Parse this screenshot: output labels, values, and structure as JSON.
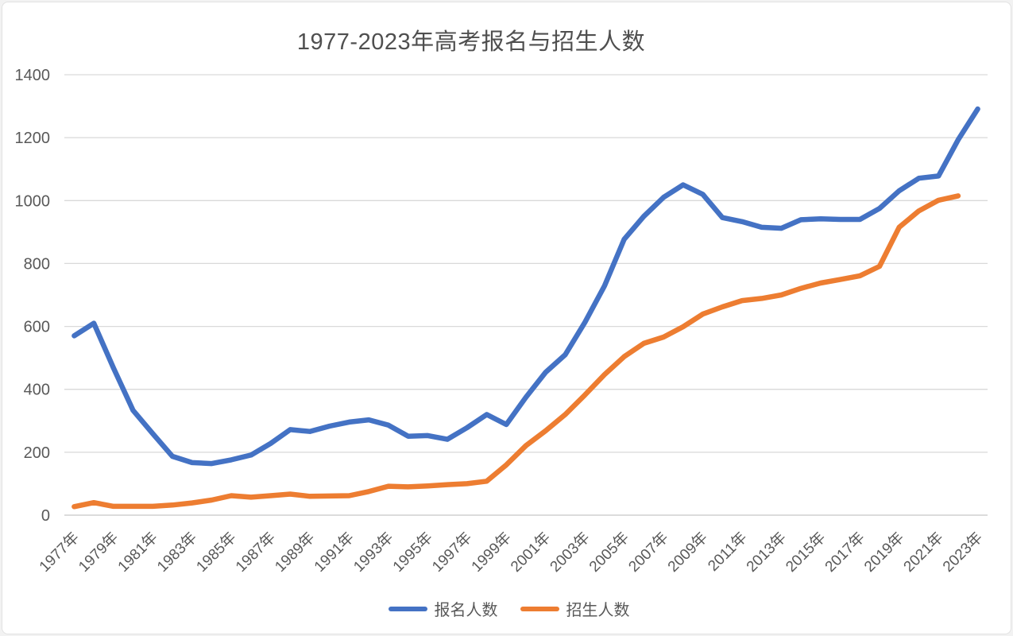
{
  "title": "1977-2023年高考报名与招生人数",
  "colors": {
    "series_registration": "#4472C4",
    "series_enrollment": "#ED7D31",
    "grid": "#D9D9D9",
    "axis_line": "#C6C6C6",
    "text": "#595959",
    "title_text": "#4F4F4F",
    "card_bg": "#FFFFFF"
  },
  "legend": {
    "items": [
      {
        "label": "报名人数",
        "color": "#4472C4"
      },
      {
        "label": "招生人数",
        "color": "#ED7D31"
      }
    ]
  },
  "chart_data": {
    "type": "line",
    "title": "1977-2023年高考报名与招生人数",
    "xlabel": "",
    "ylabel": "",
    "ylim": [
      0,
      1400
    ],
    "y_ticks": [
      0,
      200,
      400,
      600,
      800,
      1000,
      1200,
      1400
    ],
    "grid": true,
    "legend_position": "bottom",
    "x_years": [
      1977,
      1978,
      1979,
      1980,
      1981,
      1982,
      1983,
      1984,
      1985,
      1986,
      1987,
      1988,
      1989,
      1990,
      1991,
      1992,
      1993,
      1994,
      1995,
      1996,
      1997,
      1998,
      1999,
      2000,
      2001,
      2002,
      2003,
      2004,
      2005,
      2006,
      2007,
      2008,
      2009,
      2010,
      2011,
      2012,
      2013,
      2014,
      2015,
      2016,
      2017,
      2018,
      2019,
      2020,
      2021,
      2022,
      2023
    ],
    "x_tick_labels": [
      "1977年",
      "1979年",
      "1981年",
      "1983年",
      "1985年",
      "1987年",
      "1989年",
      "1991年",
      "1993年",
      "1995年",
      "1997年",
      "1999年",
      "2001年",
      "2003年",
      "2005年",
      "2007年",
      "2009年",
      "2011年",
      "2013年",
      "2015年",
      "2017年",
      "2019年",
      "2021年",
      "2023年"
    ],
    "x_tick_every": 2,
    "series": [
      {
        "name": "报名人数",
        "color": "#4472C4",
        "first_year": 1977,
        "values": [
          570,
          610,
          468,
          333,
          259,
          187,
          167,
          164,
          176,
          191,
          228,
          272,
          266,
          283,
          296,
          303,
          286,
          251,
          253,
          241,
          278,
          320,
          288,
          375,
          454,
          510,
          613,
          729,
          877,
          950,
          1010,
          1050,
          1020,
          946,
          933,
          915,
          912,
          939,
          942,
          940,
          940,
          975,
          1031,
          1071,
          1078,
          1193,
          1291
        ]
      },
      {
        "name": "招生人数",
        "color": "#ED7D31",
        "first_year": 1977,
        "values": [
          27,
          40,
          28,
          28,
          28,
          32,
          39,
          48,
          62,
          57,
          62,
          67,
          60,
          61,
          62,
          75,
          92,
          90,
          93,
          97,
          100,
          108,
          160,
          221,
          268,
          320,
          382,
          447,
          504,
          546,
          566,
          599,
          639,
          662,
          682,
          689,
          700,
          721,
          738,
          749,
          761,
          791,
          915,
          967,
          1001,
          1015
        ]
      }
    ]
  }
}
